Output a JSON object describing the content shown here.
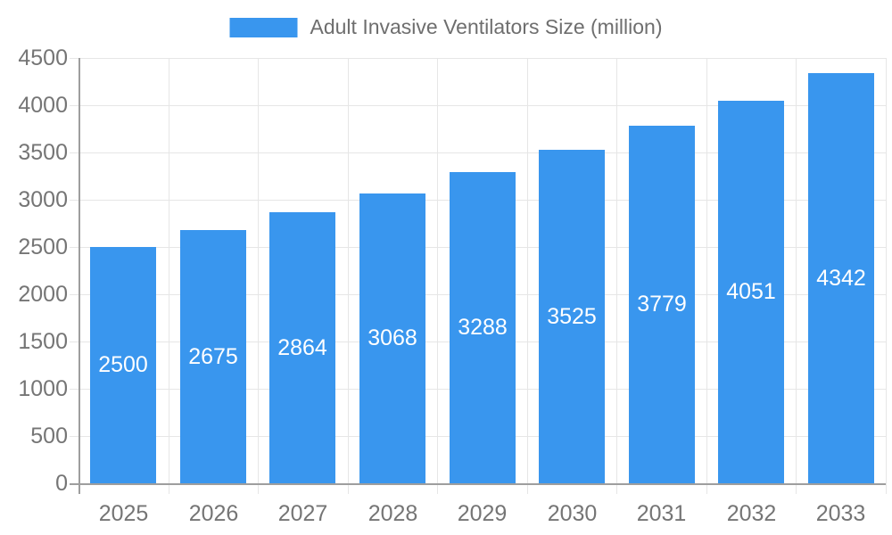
{
  "legend": {
    "label": "Adult Invasive Ventilators Size (million)"
  },
  "chart_data": {
    "type": "bar",
    "title": "Adult Invasive Ventilators Size (million)",
    "series_name": "Adult Invasive Ventilators Size (million)",
    "categories": [
      "2025",
      "2026",
      "2027",
      "2028",
      "2029",
      "2030",
      "2031",
      "2032",
      "2033"
    ],
    "values": [
      2500,
      2675,
      2864,
      3068,
      3288,
      3525,
      3779,
      4051,
      4342
    ],
    "xlabel": "",
    "ylabel": "",
    "ylim": [
      0,
      4500
    ],
    "yticks": [
      0,
      500,
      1000,
      1500,
      2000,
      2500,
      3000,
      3500,
      4000,
      4500
    ],
    "grid": "on",
    "legend_position": "top-center",
    "value_labels": "inside-center-white",
    "colors": {
      "bar": "#3996ee",
      "value_label": "#ffffff",
      "axis_text": "#757575",
      "legend_text": "#6e6e6e",
      "gridline": "#e6e6e6",
      "axis_line": "#9e9e9e",
      "background": "#ffffff"
    }
  }
}
